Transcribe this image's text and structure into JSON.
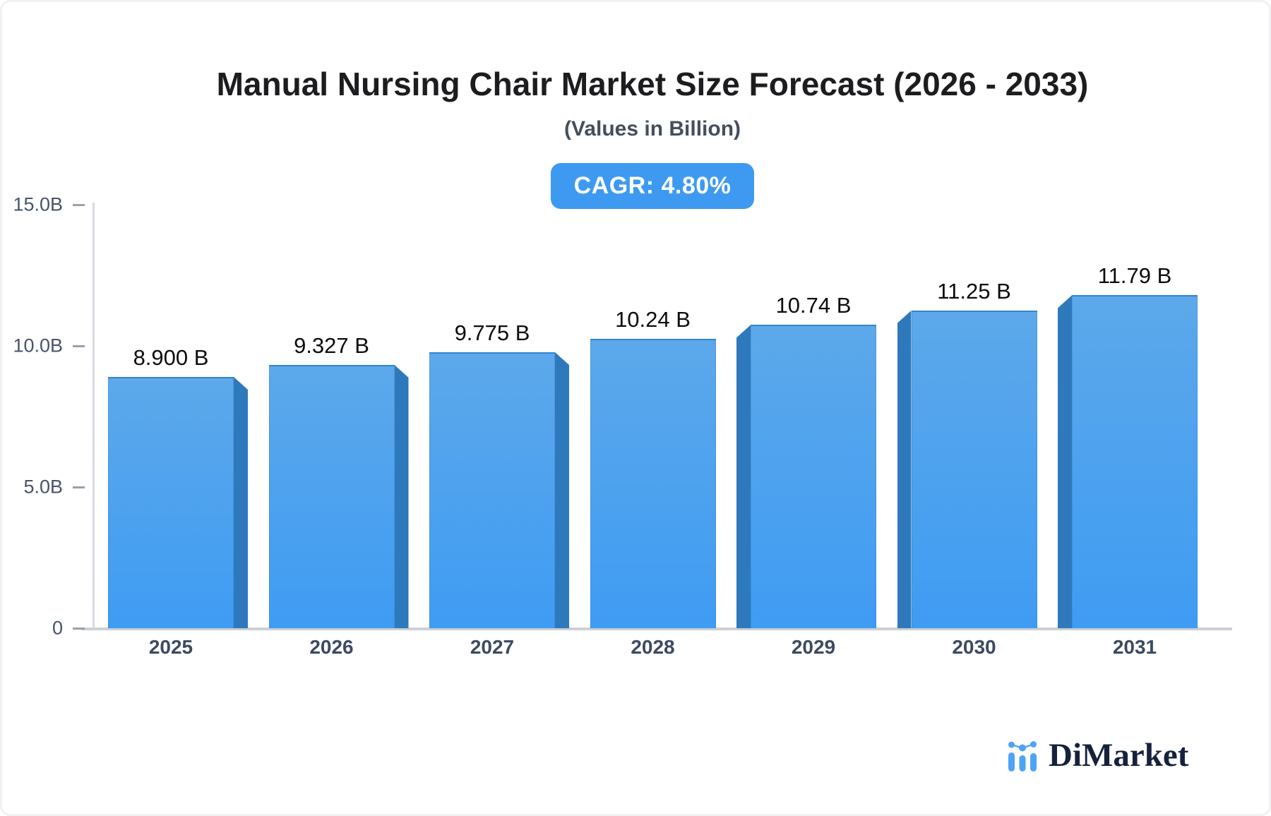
{
  "badge": {
    "label": "CAGR: 4.80%",
    "color": "#3d9af0"
  },
  "logo": {
    "text": "DiMarket",
    "icon": "mini-bar-chart-icon",
    "icon_color": "#4da3f7",
    "text_color": "#16223b"
  },
  "chart_data": {
    "type": "bar",
    "title": "Manual Nursing Chair Market Size Forecast (2026 - 2033)",
    "subtitle": "(Values in Billion)",
    "categories": [
      "2025",
      "2026",
      "2027",
      "2028",
      "2029",
      "2030",
      "2031"
    ],
    "values": [
      8.9,
      9.327,
      9.775,
      10.24,
      10.74,
      11.25,
      11.79
    ],
    "bar_labels": [
      "8.900 B",
      "9.327 B",
      "9.775 B",
      "10.24 B",
      "10.74 B",
      "11.25 B",
      "11.79 B"
    ],
    "ylim": [
      0,
      15
    ],
    "ytick_values": [
      0,
      5,
      10,
      15
    ],
    "ytick_labels": [
      "0",
      "5.0B",
      "10.0B",
      "15.0B"
    ],
    "grid": false,
    "legend": "none",
    "bar_color_top": "#5ca8ea",
    "bar_color_bottom": "#3f9cf3",
    "bar_side_color": "#2e79bc",
    "axis_color": "#d8dbe0",
    "baseline_color": "#ccd0d6"
  }
}
